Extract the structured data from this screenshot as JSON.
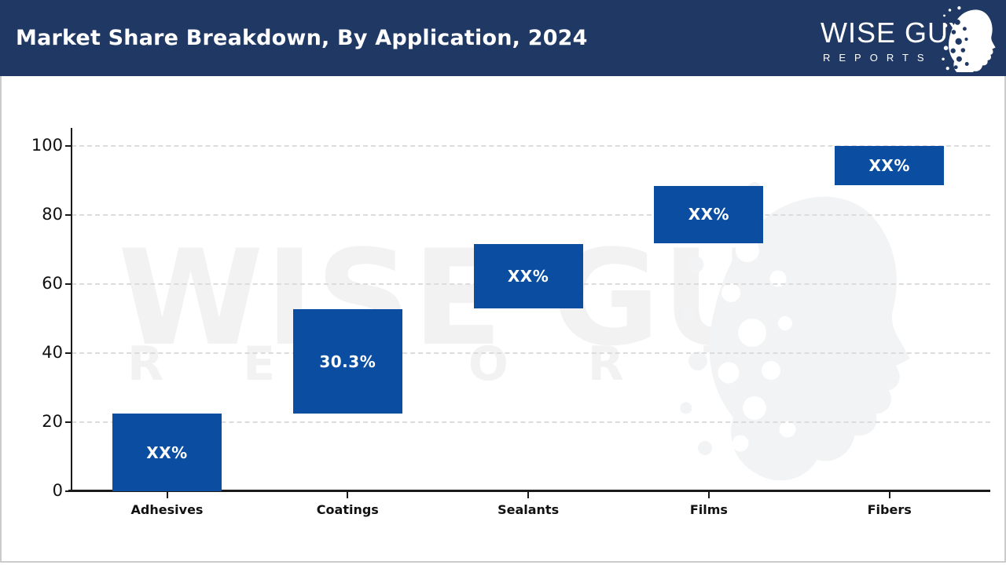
{
  "header": {
    "title": "Market Share Breakdown, By Application, 2024",
    "logo": {
      "line1": "WISE GUY",
      "line2": "REPORTS"
    }
  },
  "watermark": {
    "line1": "WISE GUY",
    "line2": "R E P O R T S"
  },
  "colors": {
    "header_bg": "#1f3864",
    "bar": "#0b4da1",
    "bar_label": "#ffffff",
    "grid": "#dcdcdc",
    "axis": "#1a1a1a",
    "watermark": "#f2f2f2"
  },
  "chart_data": {
    "type": "bar",
    "subtype": "waterfall",
    "title": "Market Share Breakdown, By Application, 2024",
    "categories": [
      "Adhesives",
      "Coatings",
      "Sealants",
      "Films",
      "Fibers"
    ],
    "segments": [
      {
        "category": "Adhesives",
        "from": 0,
        "to": 22.4,
        "value": 22.4,
        "label": "XX%"
      },
      {
        "category": "Coatings",
        "from": 22.4,
        "to": 52.7,
        "value": 30.3,
        "label": "30.3%"
      },
      {
        "category": "Sealants",
        "from": 52.9,
        "to": 71.7,
        "value": 18.8,
        "label": "XX%"
      },
      {
        "category": "Films",
        "from": 71.9,
        "to": 88.4,
        "value": 16.5,
        "label": "XX%"
      },
      {
        "category": "Fibers",
        "from": 88.6,
        "to": 99.9,
        "value": 11.3,
        "label": "XX%"
      }
    ],
    "ylim": [
      0,
      105
    ],
    "yticks": [
      0,
      20,
      40,
      60,
      80,
      100
    ],
    "xlabel": "",
    "ylabel": "",
    "grid": "horizontal-dashed",
    "legend": "none"
  }
}
